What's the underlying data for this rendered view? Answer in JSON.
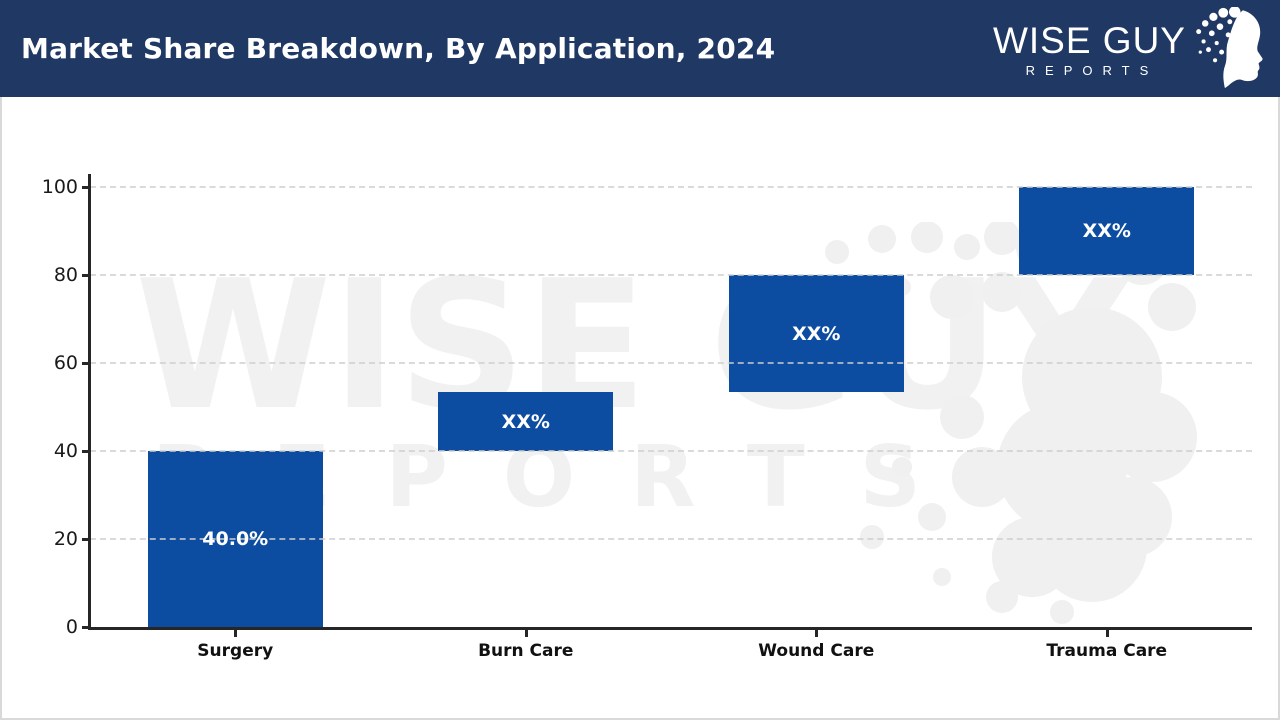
{
  "header": {
    "title": "Market Share Breakdown, By Application, 2024",
    "bg_color": "#1f3864",
    "logo": {
      "line1": "WISE GUY",
      "line2": "REPORTS"
    }
  },
  "watermark": {
    "line1": "WISE GUY",
    "line2": "REPORTS"
  },
  "chart_data": {
    "type": "bar",
    "variant": "waterfall",
    "title": "Market Share Breakdown, By Application, 2024",
    "categories": [
      "Surgery",
      "Burn Care",
      "Wound Care",
      "Trauma Care"
    ],
    "series": [
      {
        "name": "Market Share",
        "segments": [
          {
            "category": "Surgery",
            "start": 0,
            "end": 40,
            "label": "40.0%"
          },
          {
            "category": "Burn Care",
            "start": 40,
            "end": 53.3,
            "label": "XX%"
          },
          {
            "category": "Wound Care",
            "start": 53.3,
            "end": 80,
            "label": "XX%"
          },
          {
            "category": "Trauma Care",
            "start": 80,
            "end": 100,
            "label": "XX%"
          }
        ]
      }
    ],
    "xlabel": "",
    "ylabel": "",
    "ylim": [
      0,
      103
    ],
    "yticks": [
      0,
      20,
      40,
      60,
      80,
      100
    ],
    "grid": "horizontal-dashed",
    "legend": "none",
    "bar_color": "#0d4da1",
    "bar_label_color": "#ffffff",
    "axis_color": "#262626",
    "gridline_color": "#d9d9d9"
  }
}
